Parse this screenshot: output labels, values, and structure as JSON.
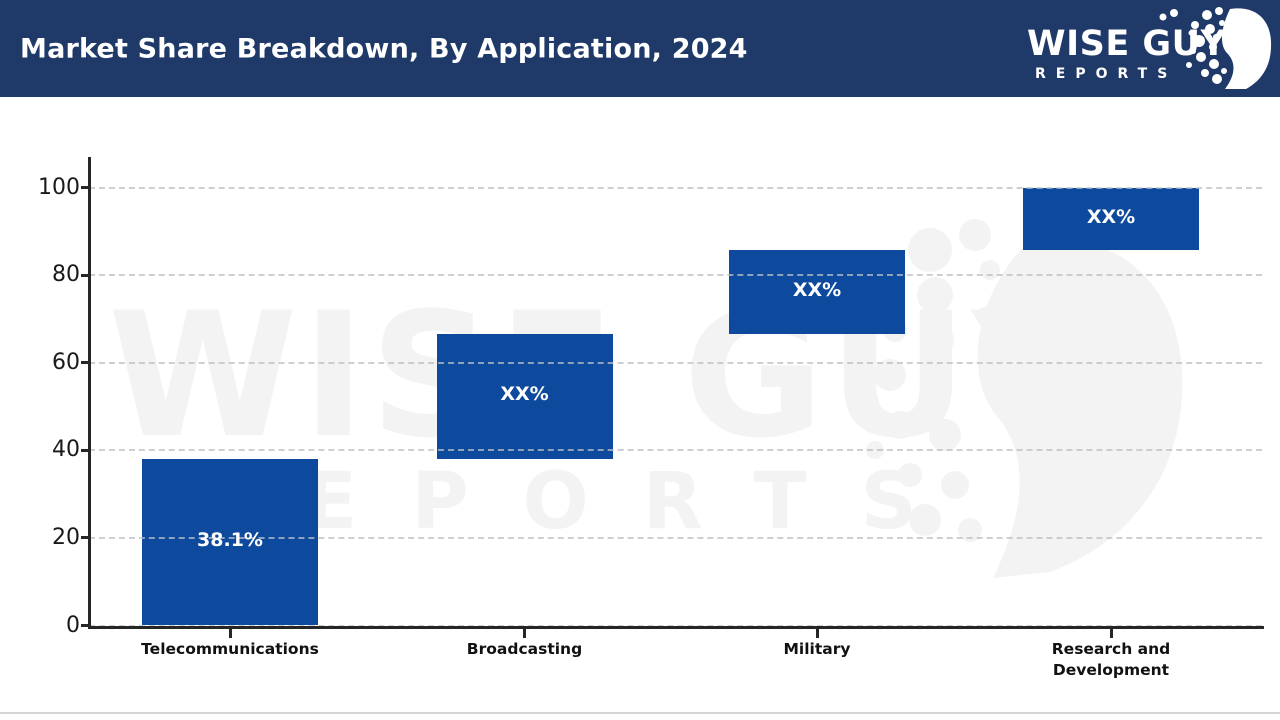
{
  "header": {
    "title": "Market Share Breakdown, By Application, 2024",
    "bg_color": "#1f3a68",
    "logo": {
      "line1": "WISE GUY",
      "line2": "REPORTS"
    }
  },
  "watermark": {
    "line1": "WISE GUY",
    "line2": "REPORTS"
  },
  "chart_data": {
    "type": "bar",
    "subtype": "waterfall",
    "title": "Market Share Breakdown, By Application, 2024",
    "categories": [
      "Telecommunications",
      "Broadcasting",
      "Military",
      "Research and Development"
    ],
    "segments": [
      {
        "category": "Telecommunications",
        "start": 0,
        "end": 38.1,
        "label": "38.1%"
      },
      {
        "category": "Broadcasting",
        "start": 38.1,
        "end": 66.5,
        "label": "XX%"
      },
      {
        "category": "Military",
        "start": 66.5,
        "end": 85.7,
        "label": "XX%"
      },
      {
        "category": "Research and Development",
        "start": 85.7,
        "end": 100,
        "label": "XX%"
      }
    ],
    "ylim": [
      0,
      100
    ],
    "yticks": [
      0,
      20,
      40,
      60,
      80,
      100
    ],
    "grid": "horizontal-dashed",
    "legend": "none",
    "bar_color": "#0d4a9e",
    "bar_label_color": "#ffffff",
    "axis_color": "#262626"
  }
}
